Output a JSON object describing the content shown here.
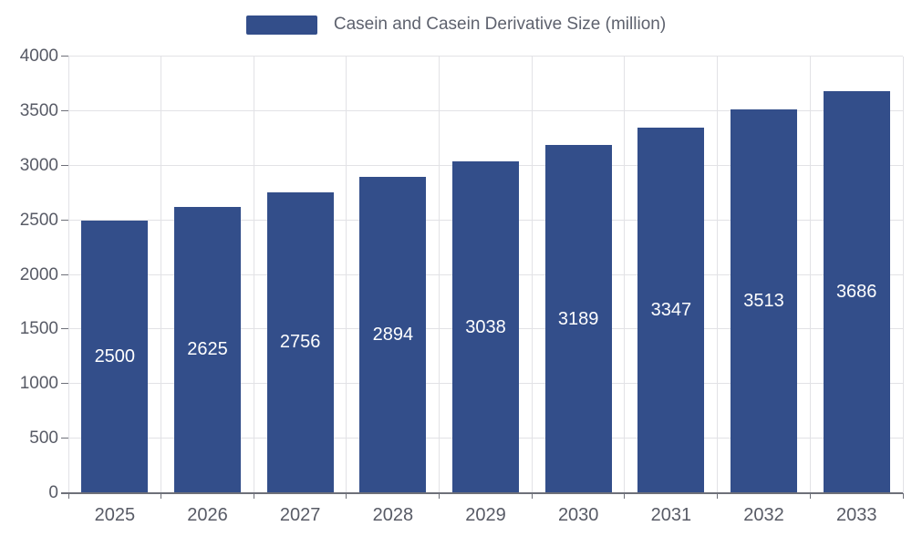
{
  "legend": {
    "label": "Casein and Casein Derivative Size (million)"
  },
  "chart_data": {
    "type": "bar",
    "title": "Casein and Casein Derivative Size (million)",
    "categories": [
      "2025",
      "2026",
      "2027",
      "2028",
      "2029",
      "2030",
      "2031",
      "2032",
      "2033"
    ],
    "values": [
      2500,
      2625,
      2756,
      2894,
      3038,
      3189,
      3347,
      3513,
      3686
    ],
    "xlabel": "",
    "ylabel": "",
    "ylim": [
      0,
      4000
    ],
    "ytick_step": 500,
    "grid": true,
    "legend_position": "top",
    "bar_color": "#334e8a",
    "value_label_color": "#ffffff",
    "axis_label_color": "#585b66"
  }
}
